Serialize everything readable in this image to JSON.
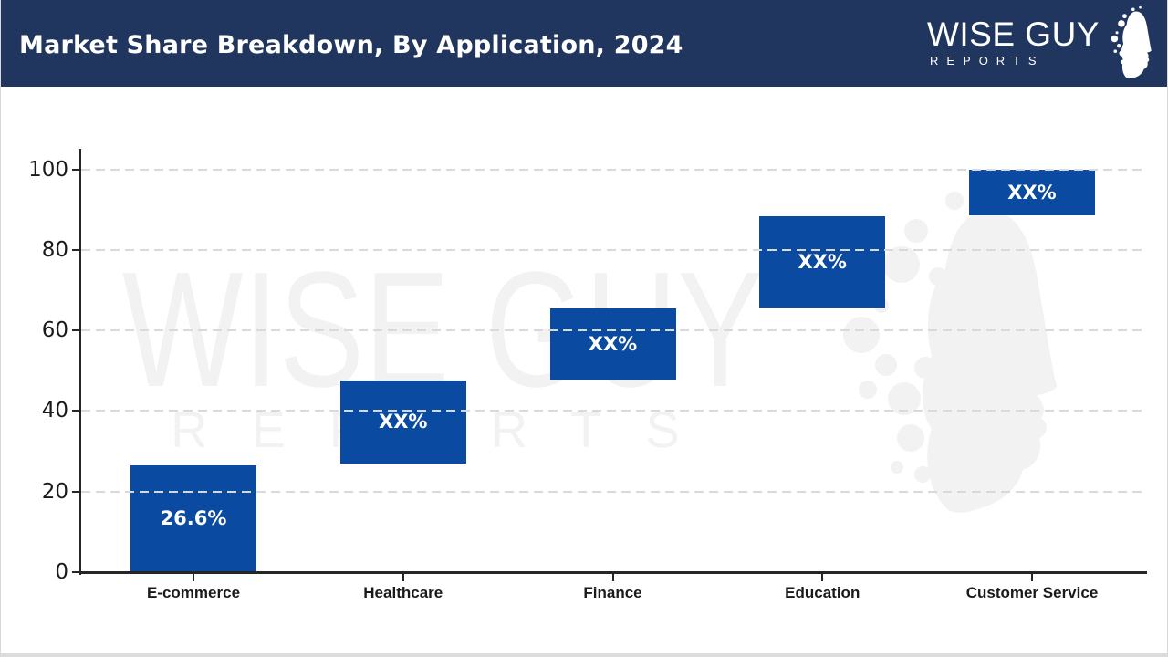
{
  "header": {
    "title": "Market Share Breakdown, By Application, 2024",
    "logo_line1": "WISE GUY",
    "logo_line2": "REPORTS",
    "bg_color": "#20365f"
  },
  "watermark": {
    "line1": "WISE GUY",
    "line2": "REPORTS"
  },
  "chart_data": {
    "type": "bar",
    "subtype": "floating-segment-waterfall",
    "title": "Market Share Breakdown, By Application, 2024",
    "categories": [
      "E-commerce",
      "Healthcare",
      "Finance",
      "Education",
      "Customer Service"
    ],
    "segments": [
      {
        "category": "E-commerce",
        "start": 0,
        "end": 26.6,
        "label": "26.6%"
      },
      {
        "category": "Healthcare",
        "start": 27.0,
        "end": 47.6,
        "label": "XX%"
      },
      {
        "category": "Finance",
        "start": 47.9,
        "end": 65.5,
        "label": "XX%"
      },
      {
        "category": "Education",
        "start": 65.7,
        "end": 88.4,
        "label": "XX%"
      },
      {
        "category": "Customer Service",
        "start": 88.6,
        "end": 99.8,
        "label": "XX%"
      }
    ],
    "xlabel": "",
    "ylabel": "",
    "yticks": [
      0,
      20,
      40,
      60,
      80,
      100
    ],
    "ylim": [
      0,
      105
    ],
    "grid": {
      "axis": "y",
      "style": "dashed",
      "color": "#d9d9d9",
      "drawn_over_bars": true
    },
    "bar_color": "#0b4aa1",
    "bar_label_color": "#ffffff",
    "axis_color": "#262626",
    "legend": "none"
  }
}
